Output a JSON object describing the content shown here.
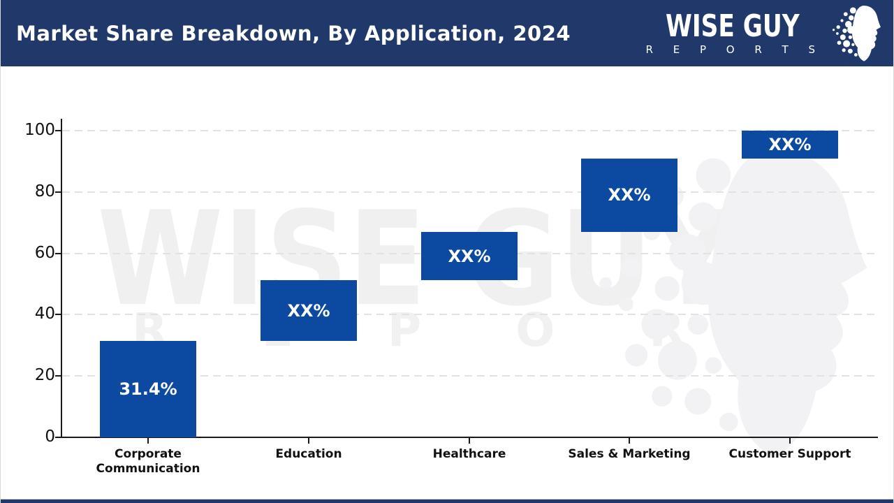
{
  "header": {
    "title": "Market Share Breakdown, By Application, 2024",
    "logo": {
      "line1": "WISE GUY",
      "line2": "R E P O R T S"
    },
    "bg_color": "#21386a"
  },
  "watermark": {
    "line1": "WISE GUY",
    "line2": "R E P O R T S"
  },
  "chart_data": {
    "type": "bar",
    "subtype": "waterfall-floating-segments",
    "title": "Market Share Breakdown, By Application, 2024",
    "categories": [
      "Corporate Communication",
      "Education",
      "Healthcare",
      "Sales & Marketing",
      "Customer Support"
    ],
    "segments": [
      {
        "start": 0,
        "end": 31.4,
        "label": "31.4%"
      },
      {
        "start": 31.4,
        "end": 51.2,
        "label": "XX%"
      },
      {
        "start": 51.2,
        "end": 67,
        "label": "XX%"
      },
      {
        "start": 67,
        "end": 91,
        "label": "XX%"
      },
      {
        "start": 91,
        "end": 100,
        "label": "XX%"
      }
    ],
    "xlabel": "",
    "ylabel": "",
    "ylim": [
      0,
      105
    ],
    "yticks": [
      0,
      20,
      40,
      60,
      80,
      100
    ],
    "grid": true,
    "grid_style": "dashed-horizontal",
    "bar_color": "#0b4aa0",
    "label_color": "#ffffff",
    "axis_color": "#1a1a1a"
  }
}
